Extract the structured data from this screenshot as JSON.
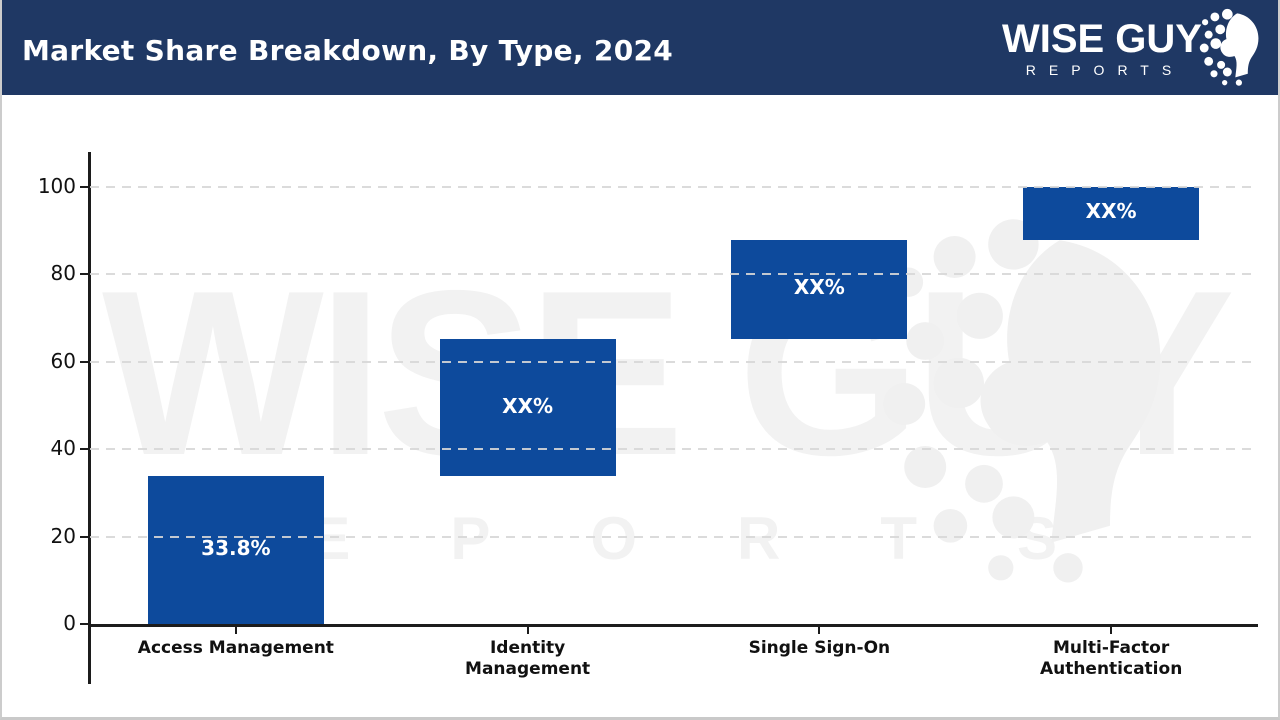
{
  "header": {
    "title": "Market Share Breakdown, By Type, 2024",
    "logo": {
      "line1": "WISE GUY",
      "line2": "REPORTS"
    },
    "bg_color": "#1f3864",
    "text_color": "#ffffff"
  },
  "watermark": {
    "line1": "WISE GUY",
    "line2": "REPORTS"
  },
  "chart_data": {
    "type": "bar",
    "subtype": "waterfall",
    "title": "Market Share Breakdown, By Type, 2024",
    "categories": [
      "Access Management",
      "Identity\nManagement",
      "Single Sign-On",
      "Multi-Factor\nAuthentication"
    ],
    "segments": [
      [
        0,
        33.8
      ],
      [
        33.8,
        65.2
      ],
      [
        65.2,
        87.9
      ],
      [
        87.9,
        100
      ]
    ],
    "values": [
      33.8,
      31.4,
      22.7,
      12.1
    ],
    "cumulative": [
      33.8,
      65.2,
      87.9,
      100
    ],
    "bar_labels": [
      "33.8%",
      "XX%",
      "XX%",
      "XX%"
    ],
    "bar_color": "#0d4a9c",
    "label_color": "#ffffff",
    "xlabel": "",
    "ylabel": "",
    "ylim": [
      0,
      100
    ],
    "yticks": [
      0,
      20,
      40,
      60,
      80,
      100
    ],
    "grid": "horizontal-dashed",
    "gridline_color": "#d7d7d7",
    "legend": "none"
  }
}
